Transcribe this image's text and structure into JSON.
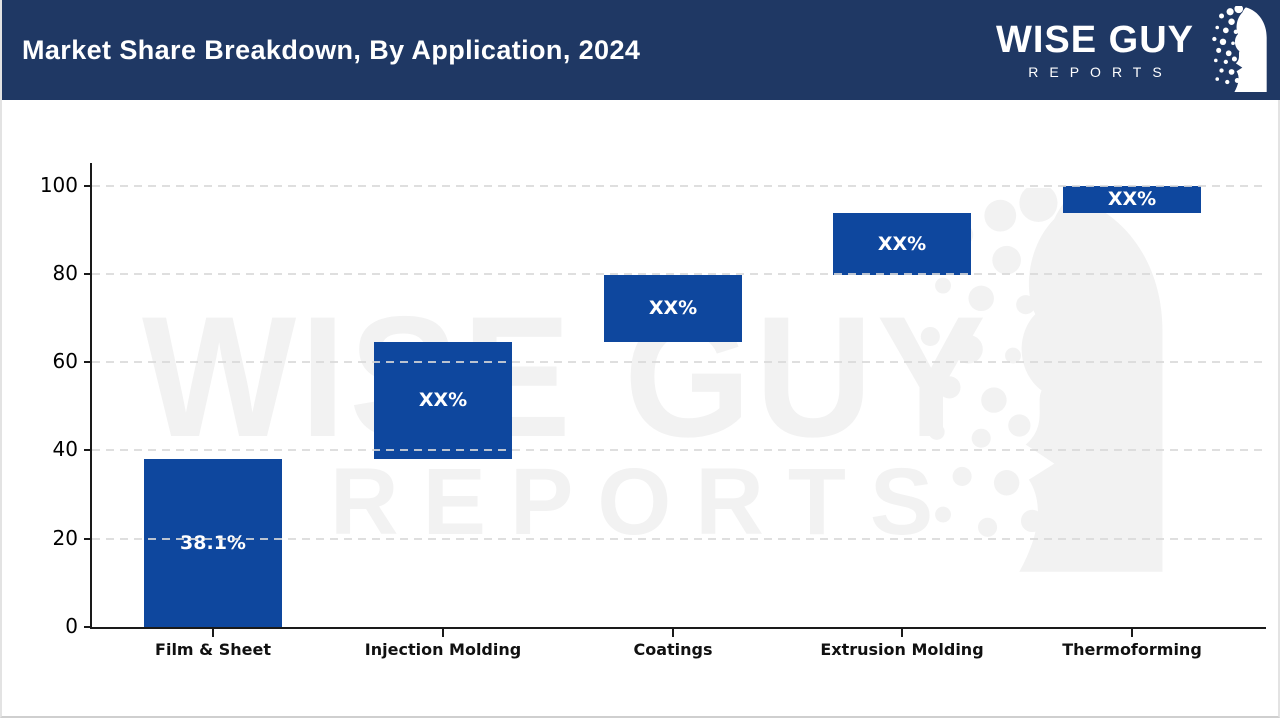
{
  "page": {
    "colors": {
      "header_bg": "#1f3864",
      "bar": "#0e479e",
      "grid": "#d9d9d9",
      "watermark": "#f2f2f2",
      "title_text": "#ffffff",
      "axis": "#1a1a1a"
    }
  },
  "header": {
    "title": "Market Share Breakdown, By Application, 2024",
    "logo": {
      "line1": "WISE GUY",
      "line2": "REPORTS"
    }
  },
  "watermark": {
    "line1": "WISE GUY",
    "line2": "REPORTS"
  },
  "chart_data": {
    "type": "bar",
    "subtype": "waterfall",
    "title": "Market Share Breakdown, By Application, 2024",
    "categories": [
      "Film & Sheet",
      "Injection Molding",
      "Coatings",
      "Extrusion Molding",
      "Thermoforming"
    ],
    "segments": [
      {
        "start": 0,
        "end": 38.1,
        "label": "38.1%"
      },
      {
        "start": 38.1,
        "end": 64.5,
        "label": "XX%"
      },
      {
        "start": 64.5,
        "end": 79.8,
        "label": "XX%"
      },
      {
        "start": 79.8,
        "end": 93.7,
        "label": "XX%"
      },
      {
        "start": 93.7,
        "end": 100,
        "label": "XX%"
      }
    ],
    "xlabel": "",
    "ylabel": "",
    "ylim": [
      0,
      105
    ],
    "y_ticks": [
      0,
      20,
      40,
      60,
      80,
      100
    ],
    "grid": "horizontal-dashed",
    "legend": "none"
  }
}
